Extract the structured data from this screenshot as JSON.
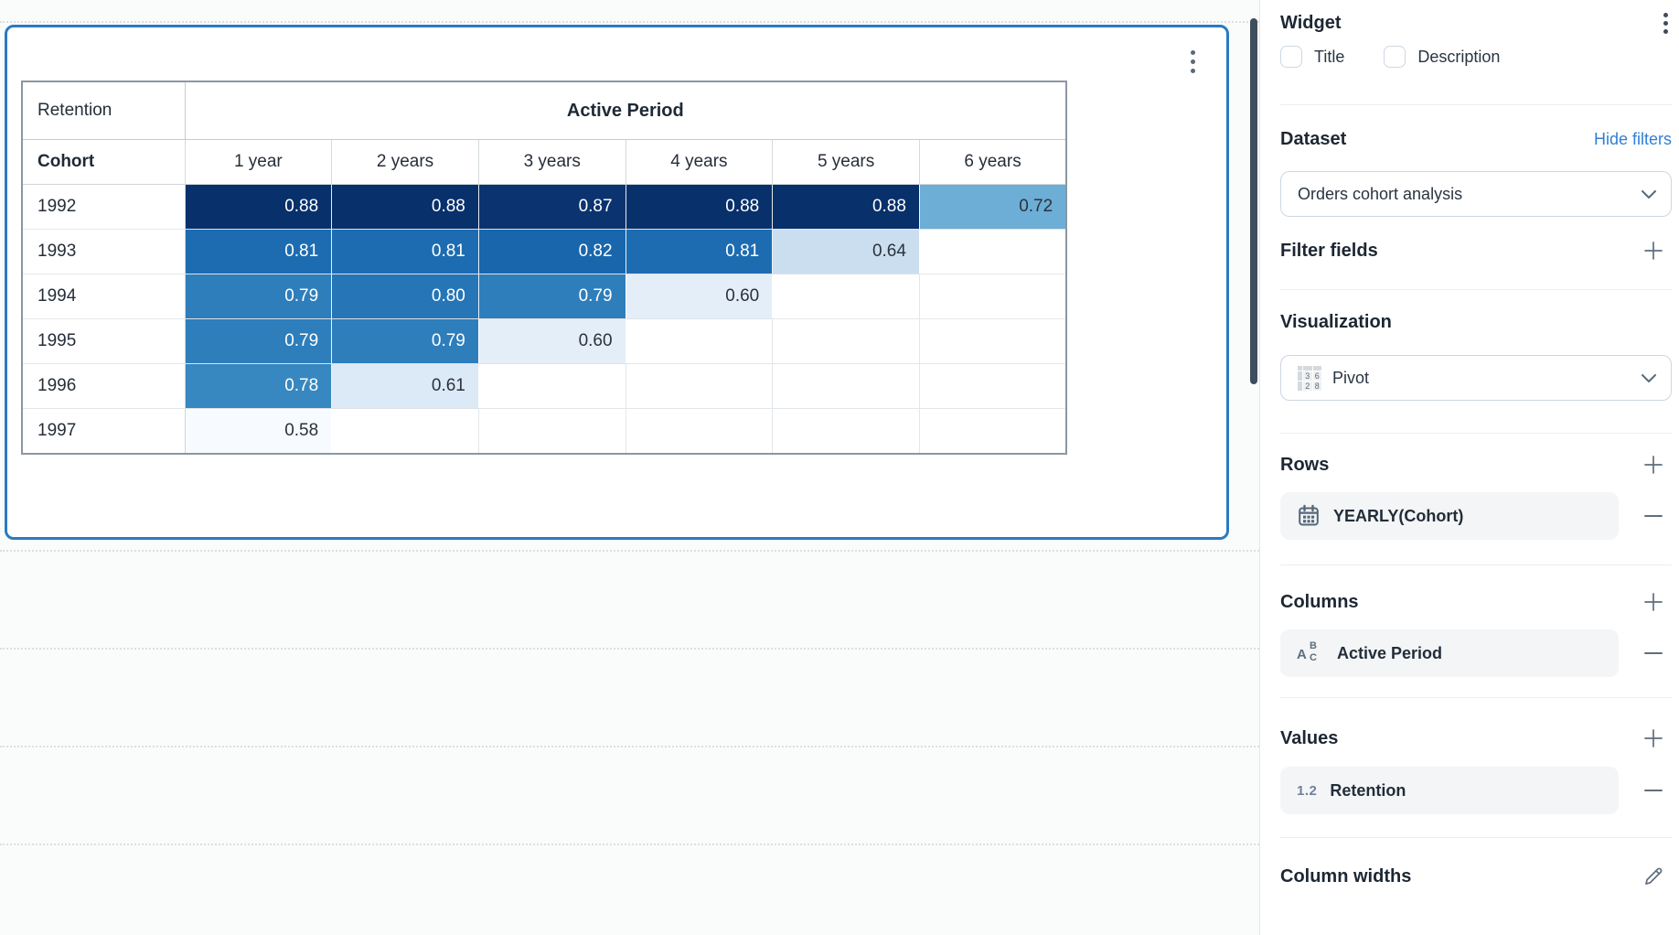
{
  "widget_card": {
    "kebab_icon": "vertical-three-dots"
  },
  "pivot": {
    "measure_label": "Retention",
    "row_header": "Cohort",
    "column_group": "Active Period",
    "col_headers": [
      "1 year",
      "2 years",
      "3 years",
      "4 years",
      "5 years",
      "6 years"
    ],
    "text_dark": "#2b323b",
    "rows": [
      {
        "label": "1992",
        "cells": [
          {
            "v": "0.88",
            "bg": "#08306b",
            "fg": "#ffffff"
          },
          {
            "v": "0.88",
            "bg": "#08306b",
            "fg": "#ffffff"
          },
          {
            "v": "0.87",
            "bg": "#0a336f",
            "fg": "#ffffff"
          },
          {
            "v": "0.88",
            "bg": "#08306b",
            "fg": "#ffffff"
          },
          {
            "v": "0.88",
            "bg": "#08306b",
            "fg": "#ffffff"
          },
          {
            "v": "0.72",
            "bg": "#6caed6",
            "fg": "#2b323b"
          }
        ]
      },
      {
        "label": "1993",
        "cells": [
          {
            "v": "0.81",
            "bg": "#1d6cb1",
            "fg": "#ffffff"
          },
          {
            "v": "0.81",
            "bg": "#1d6cb1",
            "fg": "#ffffff"
          },
          {
            "v": "0.82",
            "bg": "#1966ad",
            "fg": "#ffffff"
          },
          {
            "v": "0.81",
            "bg": "#1d6cb1",
            "fg": "#ffffff"
          },
          {
            "v": "0.64",
            "bg": "#cadef0",
            "fg": "#2b323b"
          },
          {
            "v": "",
            "bg": "#ffffff",
            "fg": "#2b323b"
          }
        ]
      },
      {
        "label": "1994",
        "cells": [
          {
            "v": "0.79",
            "bg": "#2e7ebc",
            "fg": "#ffffff"
          },
          {
            "v": "0.80",
            "bg": "#2575b7",
            "fg": "#ffffff"
          },
          {
            "v": "0.79",
            "bg": "#2e7ebc",
            "fg": "#ffffff"
          },
          {
            "v": "0.60",
            "bg": "#e4eef9",
            "fg": "#2b323b"
          },
          {
            "v": "",
            "bg": "#ffffff",
            "fg": "#2b323b"
          },
          {
            "v": "",
            "bg": "#ffffff",
            "fg": "#2b323b"
          }
        ]
      },
      {
        "label": "1995",
        "cells": [
          {
            "v": "0.79",
            "bg": "#2e7ebc",
            "fg": "#ffffff"
          },
          {
            "v": "0.79",
            "bg": "#2e7ebc",
            "fg": "#ffffff"
          },
          {
            "v": "0.60",
            "bg": "#e4eef9",
            "fg": "#2b323b"
          },
          {
            "v": "",
            "bg": "#ffffff",
            "fg": "#2b323b"
          },
          {
            "v": "",
            "bg": "#ffffff",
            "fg": "#2b323b"
          },
          {
            "v": "",
            "bg": "#ffffff",
            "fg": "#2b323b"
          }
        ]
      },
      {
        "label": "1996",
        "cells": [
          {
            "v": "0.78",
            "bg": "#3787c0",
            "fg": "#ffffff"
          },
          {
            "v": "0.61",
            "bg": "#dce9f6",
            "fg": "#2b323b"
          },
          {
            "v": "",
            "bg": "#ffffff",
            "fg": "#2b323b"
          },
          {
            "v": "",
            "bg": "#ffffff",
            "fg": "#2b323b"
          },
          {
            "v": "",
            "bg": "#ffffff",
            "fg": "#2b323b"
          },
          {
            "v": "",
            "bg": "#ffffff",
            "fg": "#2b323b"
          }
        ]
      },
      {
        "label": "1997",
        "cells": [
          {
            "v": "0.58",
            "bg": "#f7fbff",
            "fg": "#2b323b"
          },
          {
            "v": "",
            "bg": "#ffffff",
            "fg": "#2b323b"
          },
          {
            "v": "",
            "bg": "#ffffff",
            "fg": "#2b323b"
          },
          {
            "v": "",
            "bg": "#ffffff",
            "fg": "#2b323b"
          },
          {
            "v": "",
            "bg": "#ffffff",
            "fg": "#2b323b"
          },
          {
            "v": "",
            "bg": "#ffffff",
            "fg": "#2b323b"
          }
        ]
      }
    ]
  },
  "sidebar": {
    "title": "Widget",
    "kebab_icon": "vertical-three-dots",
    "checkboxes": [
      {
        "label": "Title",
        "checked": false
      },
      {
        "label": "Description",
        "checked": false
      }
    ],
    "dataset": {
      "heading": "Dataset",
      "link": "Hide filters",
      "selected": "Orders cohort analysis"
    },
    "filter_fields": {
      "heading": "Filter fields",
      "add_icon": "plus"
    },
    "visualization": {
      "heading": "Visualization",
      "selected": "Pivot",
      "icon_numbers": [
        "3",
        "6",
        "2",
        "8"
      ]
    },
    "rows_section": {
      "heading": "Rows",
      "add_icon": "plus",
      "items": [
        {
          "label": "YEARLY(Cohort)",
          "icon": "calendar",
          "remove_icon": "minus"
        }
      ]
    },
    "columns_section": {
      "heading": "Columns",
      "add_icon": "plus",
      "items": [
        {
          "label": "Active Period",
          "icon": "abc-text-field",
          "remove_icon": "minus"
        }
      ]
    },
    "values_section": {
      "heading": "Values",
      "add_icon": "plus",
      "items": [
        {
          "label": "Retention",
          "icon_text": "1.2",
          "remove_icon": "minus"
        }
      ]
    },
    "column_widths": {
      "heading": "Column widths",
      "edit_icon": "pencil"
    }
  },
  "colors": {
    "widget_border": "#2a7ac1",
    "link_blue": "#2e7fd4",
    "canvas_bg": "#fafbfb",
    "scrollbar": "#3e4e5d",
    "heat_scale_darkest": "#08306b",
    "heat_scale_lightest": "#f7fbff"
  },
  "chart_data": {
    "type": "heatmap",
    "title": "Retention",
    "xlabel": "Active Period",
    "ylabel": "Cohort",
    "x_categories": [
      "1 year",
      "2 years",
      "3 years",
      "4 years",
      "5 years",
      "6 years"
    ],
    "y_categories": [
      "1992",
      "1993",
      "1994",
      "1995",
      "1996",
      "1997"
    ],
    "values": [
      [
        0.88,
        0.88,
        0.87,
        0.88,
        0.88,
        0.72
      ],
      [
        0.81,
        0.81,
        0.82,
        0.81,
        0.64,
        null
      ],
      [
        0.79,
        0.8,
        0.79,
        0.6,
        null,
        null
      ],
      [
        0.79,
        0.79,
        0.6,
        null,
        null,
        null
      ],
      [
        0.78,
        0.61,
        null,
        null,
        null,
        null
      ],
      [
        0.58,
        null,
        null,
        null,
        null,
        null
      ]
    ],
    "colorscale": "Blues",
    "value_domain": [
      0.58,
      0.88
    ],
    "legend": "none",
    "grid": "on"
  }
}
